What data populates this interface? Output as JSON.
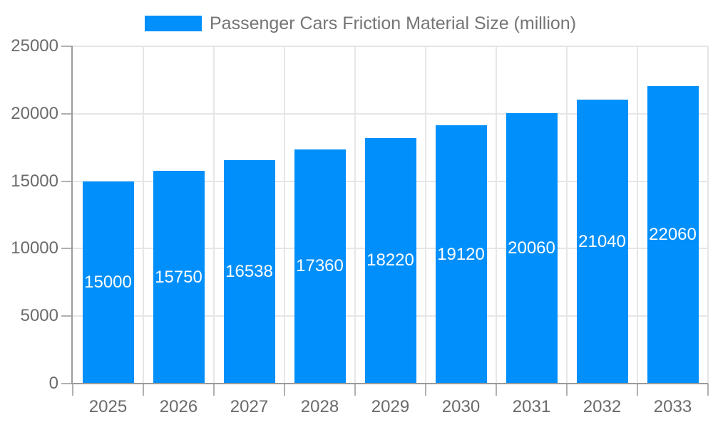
{
  "chart_data": {
    "type": "bar",
    "title": "Passenger Cars Friction Material Size (million)",
    "categories": [
      "2025",
      "2026",
      "2027",
      "2028",
      "2029",
      "2030",
      "2031",
      "2032",
      "2033"
    ],
    "values": [
      15000,
      15750,
      16538,
      17360,
      18220,
      19120,
      20060,
      21040,
      22060
    ],
    "series": [
      {
        "name": "Passenger Cars Friction Material Size (million)",
        "values": [
          15000,
          15750,
          16538,
          17360,
          18220,
          19120,
          20060,
          21040,
          22060
        ]
      }
    ],
    "xlabel": "",
    "ylabel": "",
    "ylim": [
      0,
      25000
    ],
    "yticks": [
      0,
      5000,
      10000,
      15000,
      20000,
      25000
    ],
    "grid": true,
    "legend_position": "top-center",
    "bar_labels_inside": true,
    "colors": {
      "bar": "#008FFB",
      "bar_label": "#FFFFFF",
      "legend_text": "#757575",
      "axis_text": "#6B6B6B",
      "axis_line": "#9A9A9A",
      "tick_line": "#B0B0B0",
      "gridline": "#E6E6E6",
      "background": "#FFFFFF"
    }
  }
}
